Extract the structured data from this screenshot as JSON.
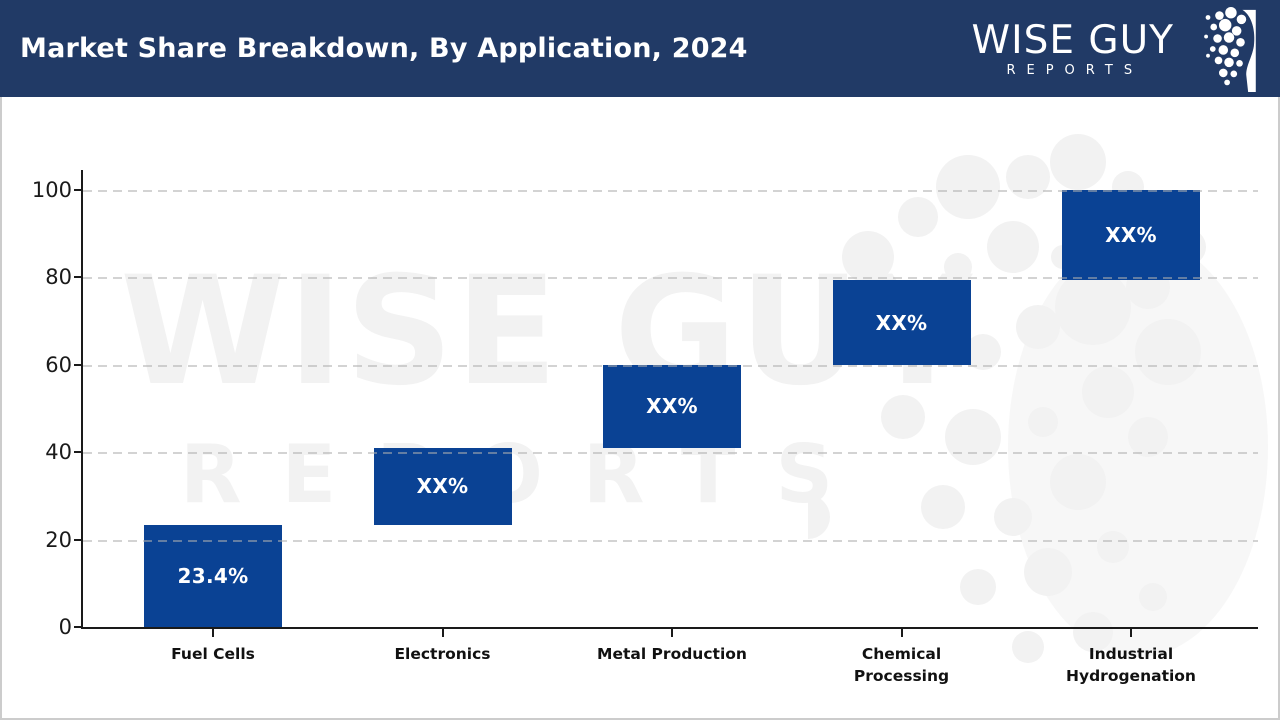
{
  "header": {
    "title": "Market Share Breakdown, By Application, 2024",
    "bg_color": "#213a66",
    "logo_line1": "WISE GUY",
    "logo_line2": "REPORTS"
  },
  "watermark": {
    "line1": "WISE GUY",
    "line2": "REPORTS"
  },
  "chart_data": {
    "type": "bar",
    "subtype": "waterfall",
    "title": "Market Share Breakdown, By Application, 2024",
    "categories": [
      "Fuel Cells",
      "Electronics",
      "Metal Production",
      "Chemical\nProcessing",
      "Industrial\nHydrogenation"
    ],
    "series": [
      {
        "name": "Market Share",
        "segments": [
          {
            "category": "Fuel Cells",
            "start": 0,
            "end": 23.4,
            "label": "23.4%"
          },
          {
            "category": "Electronics",
            "start": 23.4,
            "end": 41,
            "label": "XX%"
          },
          {
            "category": "Metal Production",
            "start": 41,
            "end": 60,
            "label": "XX%"
          },
          {
            "category": "Chemical Processing",
            "start": 60,
            "end": 79.3,
            "label": "XX%"
          },
          {
            "category": "Industrial Hydrogenation",
            "start": 79.3,
            "end": 100,
            "label": "XX%"
          }
        ]
      }
    ],
    "yticks": [
      0,
      20,
      40,
      60,
      80,
      100
    ],
    "ylim": [
      0,
      104.6
    ],
    "xlabel": "",
    "ylabel": "",
    "grid": "horizontal-dashed-above-bars",
    "legend": "none",
    "bar_color": "#0a4294",
    "grid_color": "#b0b0b0",
    "axis_color": "#1a1a1a",
    "value_label_color": "#ffffff"
  }
}
